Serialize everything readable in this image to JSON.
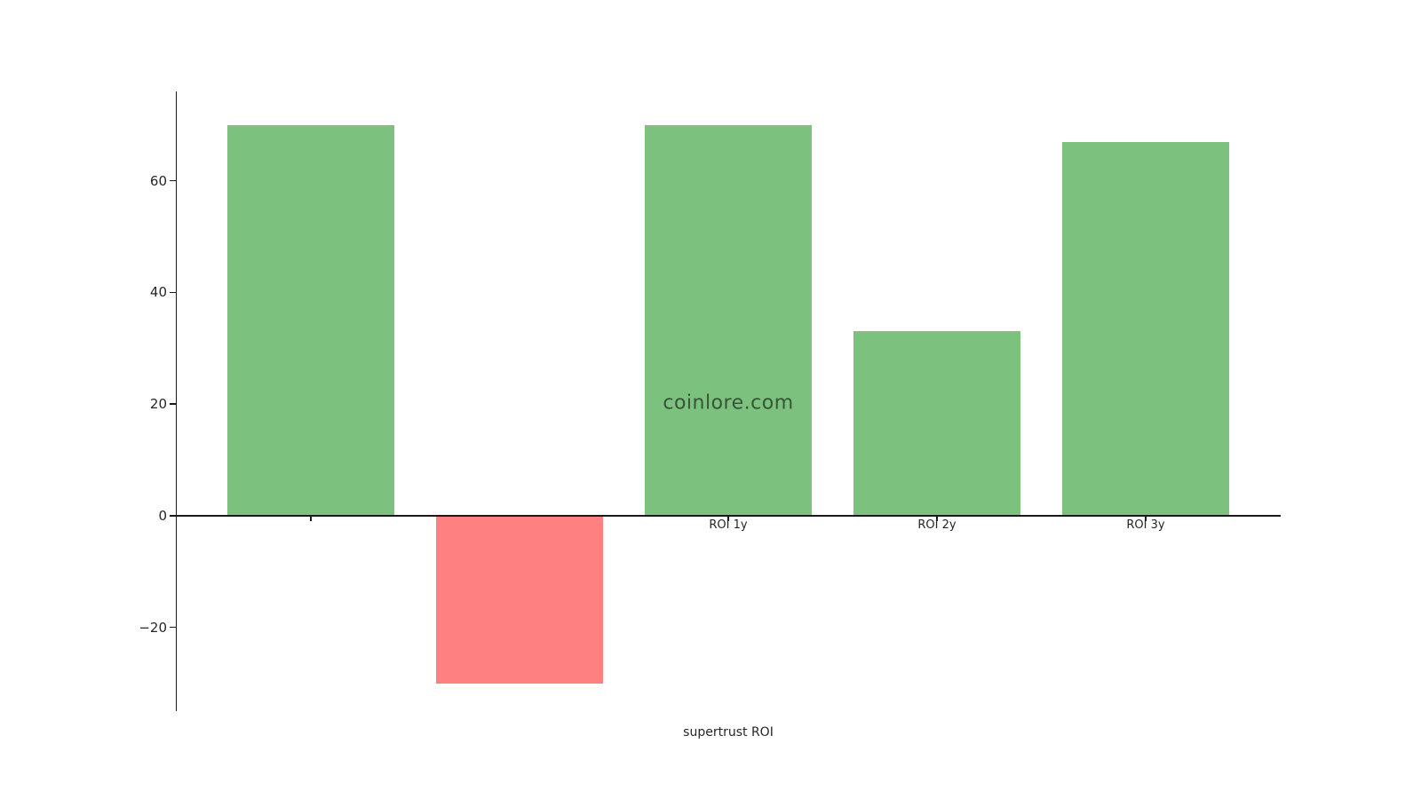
{
  "page": {
    "background": "#ffffff"
  },
  "chart_data": {
    "type": "bar",
    "title": "supertrust ROI",
    "watermark": "coinlore.com",
    "categories": [
      "",
      "",
      "ROI 1y",
      "ROI 2y",
      "ROI 3y"
    ],
    "values": [
      70,
      -30,
      70,
      33,
      67
    ],
    "series": [
      {
        "name": "supertrust ROI",
        "values": [
          70,
          -30,
          70,
          33,
          67
        ]
      }
    ],
    "bar_colors": [
      "#7dc17f",
      "#ff8080",
      "#7dc17f",
      "#7dc17f",
      "#7dc17f"
    ],
    "positive_color": "#7dc17f",
    "negative_color": "#ff8080",
    "axis_color": "#1a1a1a",
    "text_color": "#262626",
    "xlabel": "supertrust ROI",
    "ylabel": "",
    "yticks": [
      60,
      40,
      20,
      0,
      -20
    ],
    "ylim": [
      -35,
      76
    ],
    "grid": false,
    "legend_position": "none"
  }
}
